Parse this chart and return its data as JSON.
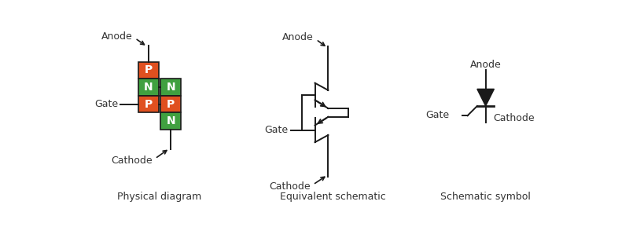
{
  "bg_color": "#ffffff",
  "p_color": "#e05020",
  "n_color": "#40a040",
  "line_color": "#1a1a1a",
  "text_color": "#333333",
  "title1": "Physical diagram",
  "title2": "Equivalent schematic",
  "title3": "Schematic symbol"
}
